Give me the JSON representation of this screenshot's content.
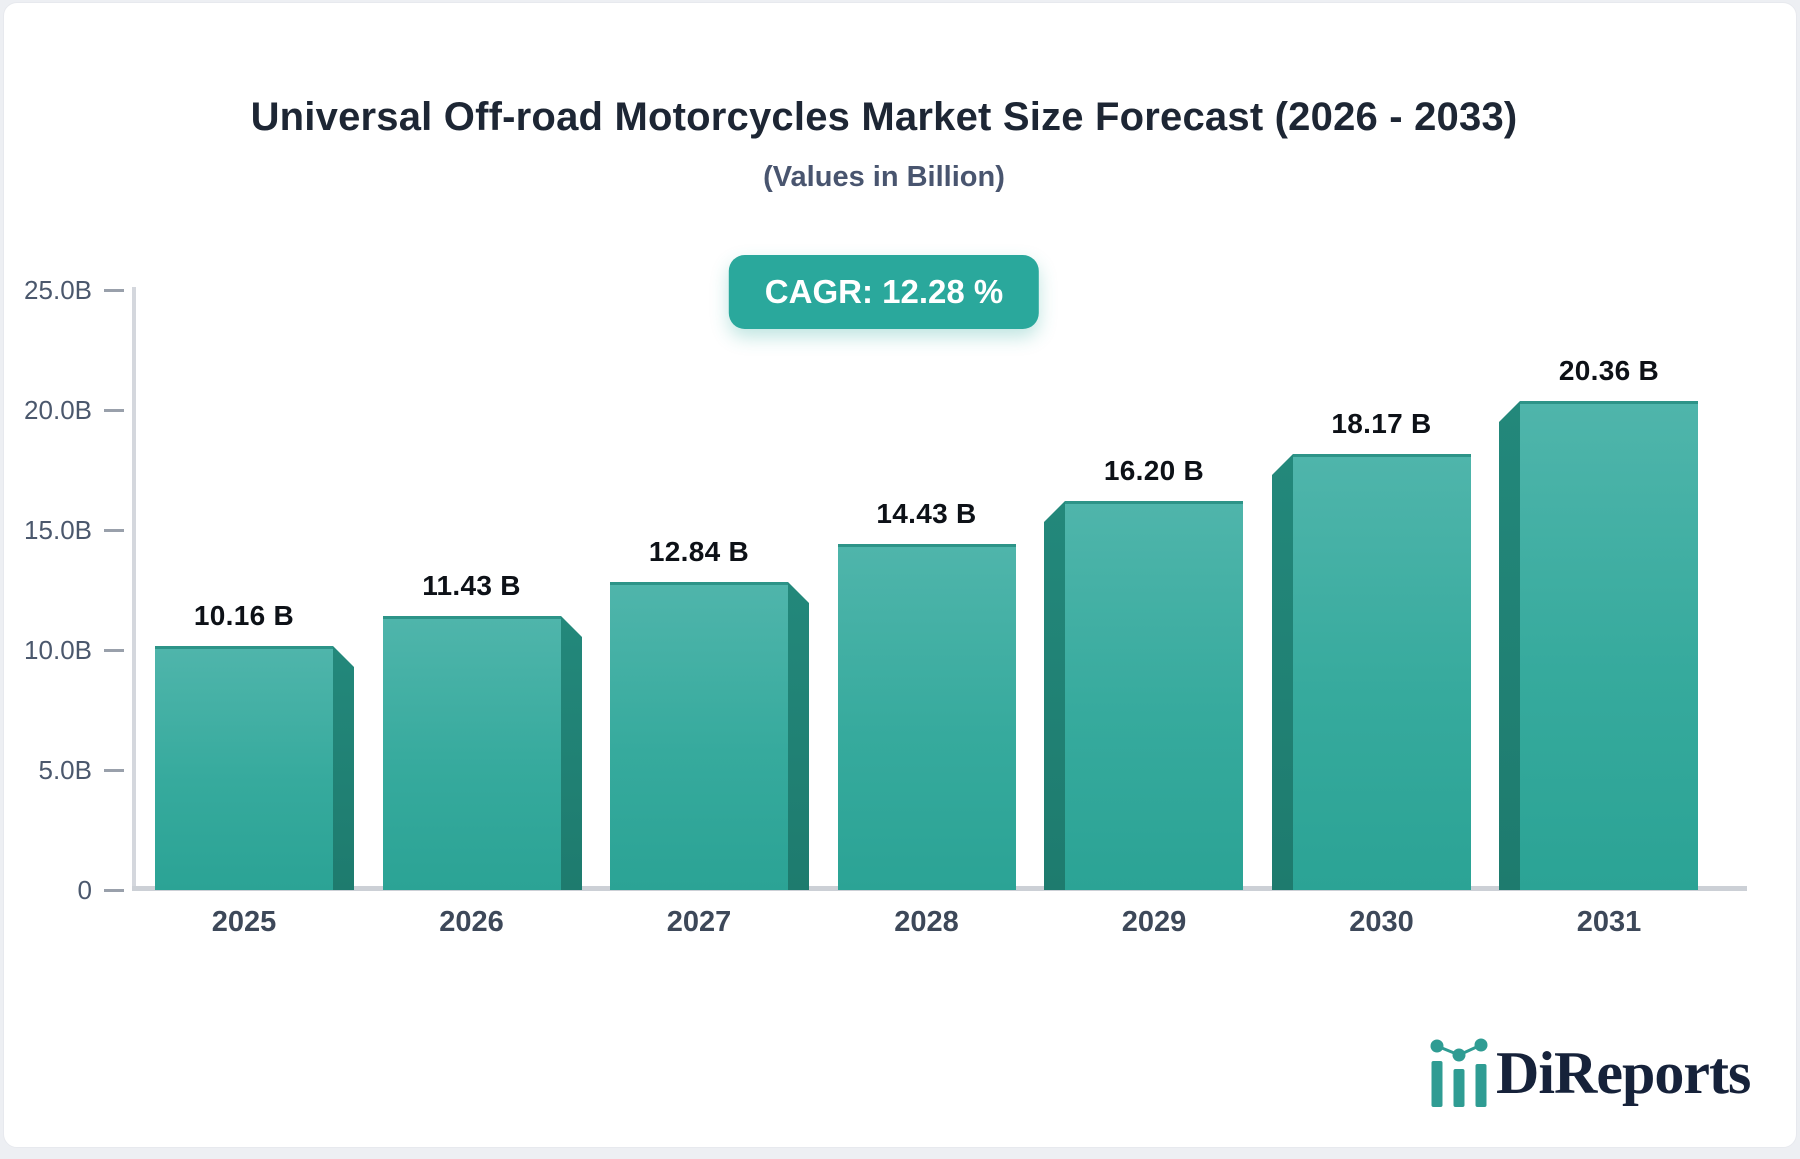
{
  "header": {
    "title": "Universal Off-road Motorcycles Market Size Forecast (2026 - 2033)",
    "subtitle": "(Values in Billion)",
    "cagr_label": "CAGR: 12.28 %"
  },
  "chart_data": {
    "type": "bar",
    "categories": [
      "2025",
      "2026",
      "2027",
      "2028",
      "2029",
      "2030",
      "2031"
    ],
    "values": [
      10.16,
      11.43,
      12.84,
      14.43,
      16.2,
      18.17,
      20.36
    ],
    "value_labels": [
      "10.16 B",
      "11.43 B",
      "12.84 B",
      "14.43 B",
      "16.20 B",
      "18.17 B",
      "20.36 B"
    ],
    "title": "Universal Off-road Motorcycles Market Size Forecast (2026 - 2033)",
    "xlabel": "",
    "ylabel": "",
    "ylim": [
      0,
      25
    ],
    "ytick_labels": [
      "25.0B",
      "20.0B",
      "15.0B",
      "10.0B",
      "5.0B",
      "0"
    ],
    "grid": false,
    "legend": false,
    "bar_style": "3d-perspective",
    "bar_face_top_color": "#4fb5ab",
    "bar_face_bottom_color": "#2ba395",
    "bar_side_color": "#1e7b6e"
  },
  "badge": {
    "background": "#2aa89c",
    "text_color": "#ffffff"
  },
  "brand": {
    "name": "DiReports",
    "icon": "mini-bar-chart-logo",
    "text_color": "#16223a",
    "icon_color": "#2f9c93"
  }
}
